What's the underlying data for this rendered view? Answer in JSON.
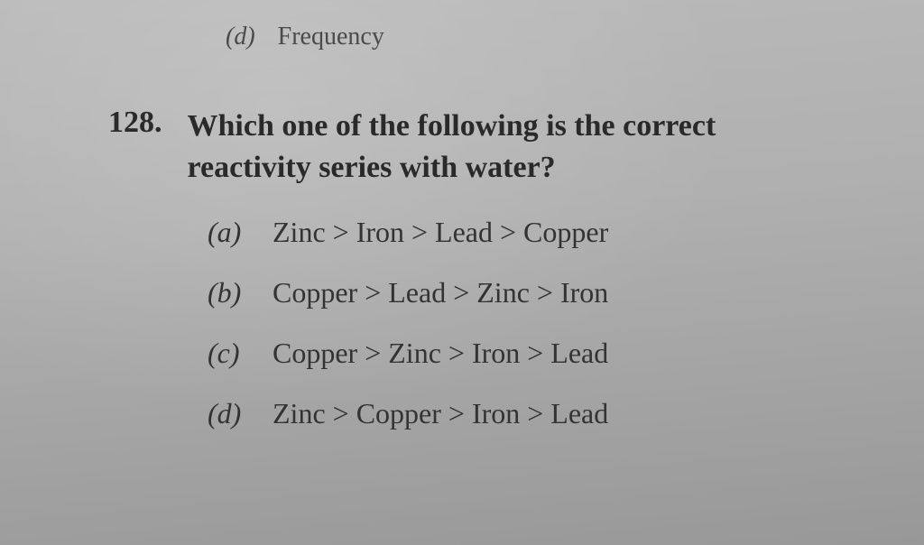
{
  "previous_question": {
    "option_d": {
      "marker": "(d)",
      "text": "Frequency"
    }
  },
  "question": {
    "number": "128.",
    "text_line1": "Which one of the following is the correct",
    "text_line2": "reactivity series with water?"
  },
  "options": {
    "a": {
      "marker": "(a)",
      "text": "Zinc > Iron > Lead > Copper"
    },
    "b": {
      "marker": "(b)",
      "text": "Copper > Lead > Zinc > Iron"
    },
    "c": {
      "marker": "(c)",
      "text": "Copper > Zinc > Iron > Lead"
    },
    "d": {
      "marker": "(d)",
      "text": "Zinc > Copper > Iron > Lead"
    }
  },
  "styling": {
    "background_color": "#b0b0b0",
    "text_color": "#2a2a2a",
    "option_text_color": "#333333",
    "question_fontsize": 34,
    "option_fontsize": 32,
    "prev_option_fontsize": 28,
    "font_family": "Georgia, Times New Roman, serif"
  }
}
